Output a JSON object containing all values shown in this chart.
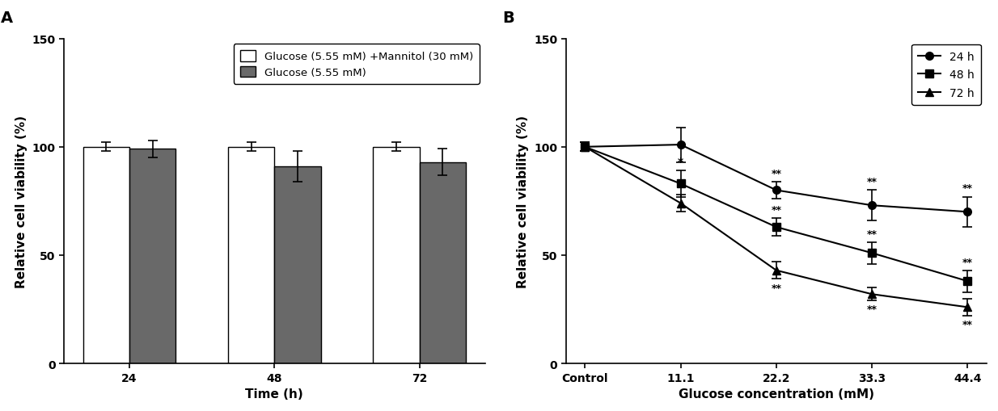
{
  "panel_A": {
    "label": "A",
    "bar_groups": [
      "24",
      "48",
      "72"
    ],
    "bar_values_white": [
      100,
      100,
      100
    ],
    "bar_errors_white": [
      2,
      2,
      2
    ],
    "bar_values_gray": [
      99,
      91,
      93
    ],
    "bar_errors_gray": [
      4,
      7,
      6
    ],
    "white_color": "#FFFFFF",
    "gray_color": "#696969",
    "edge_color": "#000000",
    "ylabel": "Relative cell viability (%)",
    "xlabel": "Time (h)",
    "ylim": [
      0,
      150
    ],
    "yticks": [
      0,
      50,
      100,
      150
    ],
    "legend_labels": [
      "Glucose (5.55 mM) +Mannitol (30 mM)",
      "Glucose (5.55 mM)"
    ]
  },
  "panel_B": {
    "label": "B",
    "x_labels": [
      "Control",
      "11.1",
      "22.2",
      "33.3",
      "44.4"
    ],
    "x_positions": [
      0,
      1,
      2,
      3,
      4
    ],
    "y_24h": [
      100,
      101,
      80,
      73,
      70
    ],
    "y_24h_err": [
      2,
      8,
      4,
      7,
      7
    ],
    "y_48h": [
      100,
      83,
      63,
      51,
      38
    ],
    "y_48h_err": [
      2,
      6,
      4,
      5,
      5
    ],
    "y_72h": [
      100,
      74,
      43,
      32,
      26
    ],
    "y_72h_err": [
      2,
      4,
      4,
      3,
      4
    ],
    "line_color": "#000000",
    "marker_circle": "o",
    "marker_square": "s",
    "marker_triangle": "^",
    "ylabel": "Relative cell viability (%)",
    "xlabel": "Glucose concentration (mM)",
    "ylim": [
      0,
      150
    ],
    "yticks": [
      0,
      50,
      100,
      150
    ],
    "legend_labels": [
      "24 h",
      "48 h",
      "72 h"
    ]
  },
  "figure_width": 12.34,
  "figure_height": 5.1,
  "dpi": 100,
  "background_color": "#FFFFFF",
  "fontsize_label": 11,
  "fontsize_tick": 10,
  "fontsize_legend": 10,
  "fontsize_panel_label": 14
}
